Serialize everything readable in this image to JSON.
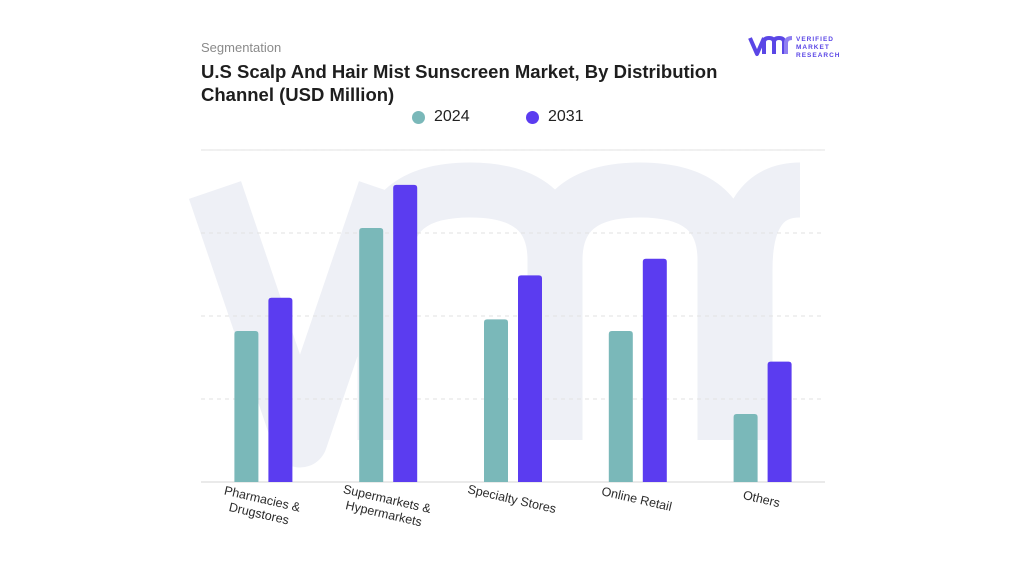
{
  "header": {
    "segment_label": "Segmentation",
    "title": "U.S Scalp And Hair Mist Sunscreen Market, By Distribution Channel (USD Million)"
  },
  "logo": {
    "line1": "VERIFIED",
    "line2": "MARKET",
    "line3": "RESEARCH",
    "color": "#5a46e6"
  },
  "chart_data": {
    "type": "bar",
    "title": "U.S Scalp And Hair Mist Sunscreen Market, By Distribution Channel (USD Million)",
    "categories": [
      "Pharmacies & Drugstores",
      "Supermarkets & Hypermarkets",
      "Specialty Stores",
      "Online Retail",
      "Others"
    ],
    "series": [
      {
        "name": "2024",
        "color": "#7ab8b9",
        "values": [
          1.82,
          3.06,
          1.96,
          1.82,
          0.82
        ]
      },
      {
        "name": "2031",
        "color": "#5b3cf0",
        "values": [
          2.22,
          3.58,
          2.49,
          2.69,
          1.45
        ]
      }
    ],
    "ylim": [
      0,
      4
    ],
    "xlabel": "",
    "ylabel": "",
    "grid": true,
    "legend_position": "top-center",
    "y_tick_labels_shown": false
  }
}
